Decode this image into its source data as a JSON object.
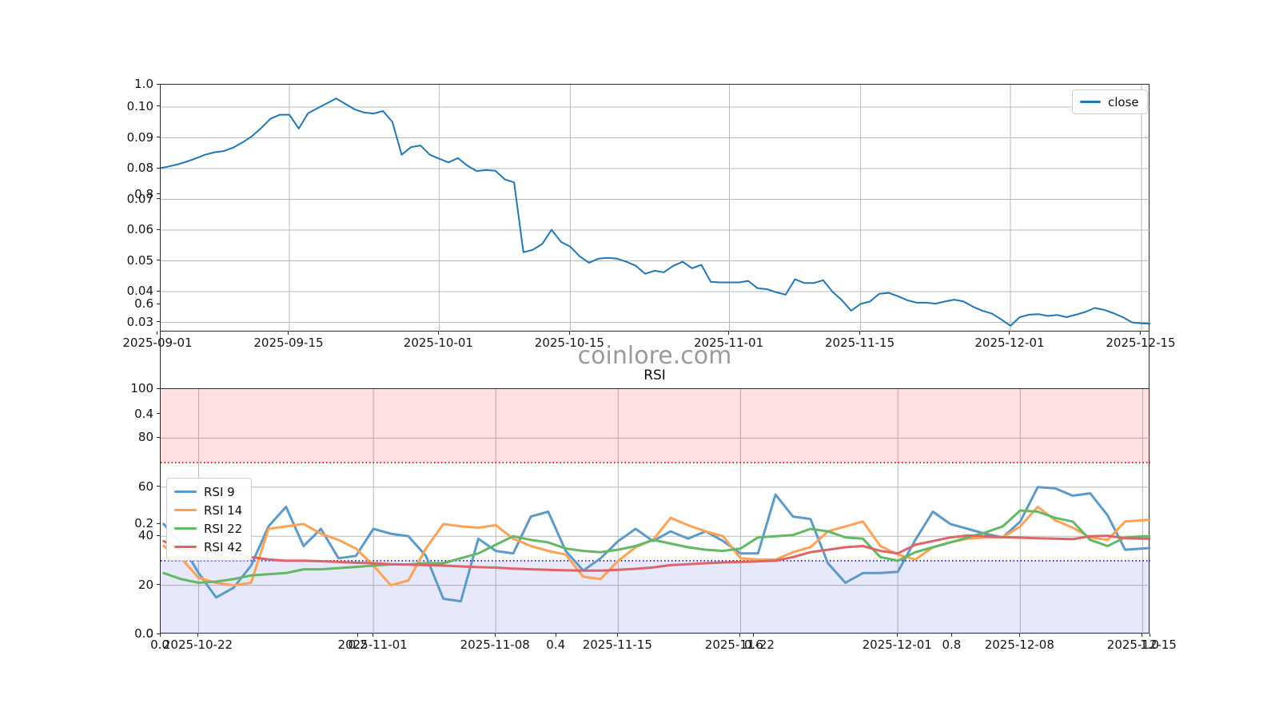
{
  "watermark": "coinlore.com",
  "rsi_title": "RSI",
  "colors": {
    "close_line": "#1f77b4",
    "rsi9": "#5b9ac9",
    "rsi14": "#ffa254",
    "rsi22": "#63b963",
    "rsi42": "#dd6467",
    "grid": "#b8b8b8",
    "spine": "#2a2a2a",
    "overbought_line": "#e60000",
    "oversold_line": "#1d1db8",
    "overbought_fill": "rgba(255,70,80,0.16)",
    "oversold_fill": "rgba(80,80,225,0.13)",
    "watermark_gray": "#9a9a9a"
  },
  "legend_price": {
    "items": [
      {
        "label": "close",
        "color": "#1f77b4"
      }
    ]
  },
  "legend_rsi": {
    "items": [
      {
        "label": "RSI 9",
        "color": "#5b9ac9"
      },
      {
        "label": "RSI 14",
        "color": "#ffa254"
      },
      {
        "label": "RSI 22",
        "color": "#63b963"
      },
      {
        "label": "RSI 42",
        "color": "#dd6467"
      }
    ]
  },
  "hidden_axis": {
    "y_tick_labels": [
      "1.0",
      "0.8",
      "0.6",
      "0.4",
      "0.2",
      "0.0"
    ],
    "x_tick_labels": [
      "0.0",
      "0.2",
      "0.4",
      "0.6",
      "0.8",
      "1.0"
    ]
  },
  "chart_data": [
    {
      "id": "price",
      "type": "line",
      "title": "",
      "xlabel": "",
      "ylabel": "",
      "x_start_date": "2025-09-01",
      "xlim": [
        0.26,
        105.94
      ],
      "ylim": [
        0.02677,
        0.10727
      ],
      "grid": true,
      "legend_position": "upper right",
      "x_ticks": [
        {
          "day": 0,
          "label": "2025-09-01"
        },
        {
          "day": 14,
          "label": "2025-09-15"
        },
        {
          "day": 30,
          "label": "2025-10-01"
        },
        {
          "day": 44,
          "label": "2025-10-15"
        },
        {
          "day": 61,
          "label": "2025-11-01"
        },
        {
          "day": 75,
          "label": "2025-11-15"
        },
        {
          "day": 91,
          "label": "2025-12-01"
        },
        {
          "day": 105,
          "label": "2025-12-15"
        }
      ],
      "y_ticks": [
        {
          "v": 0.1,
          "label": "0.10"
        },
        {
          "v": 0.09,
          "label": "0.09"
        },
        {
          "v": 0.08,
          "label": "0.08"
        },
        {
          "v": 0.07,
          "label": "0.07"
        },
        {
          "v": 0.06,
          "label": "0.06"
        },
        {
          "v": 0.05,
          "label": "0.05"
        },
        {
          "v": 0.04,
          "label": "0.04"
        },
        {
          "v": 0.03,
          "label": "0.03"
        }
      ],
      "series": [
        {
          "name": "close",
          "color": "#1f77b4",
          "width": 2,
          "values": [
            0.08,
            0.0806,
            0.0813,
            0.0822,
            0.0833,
            0.0845,
            0.0853,
            0.0857,
            0.0868,
            0.0885,
            0.0905,
            0.0932,
            0.0962,
            0.0975,
            0.0975,
            0.093,
            0.098,
            0.0996,
            0.1012,
            0.1028,
            0.101,
            0.0992,
            0.0982,
            0.0979,
            0.0987,
            0.0952,
            0.0845,
            0.087,
            0.0875,
            0.0845,
            0.0832,
            0.082,
            0.0834,
            0.081,
            0.0792,
            0.0795,
            0.0793,
            0.0765,
            0.0755,
            0.0528,
            0.0536,
            0.0555,
            0.0601,
            0.0562,
            0.0546,
            0.0515,
            0.0494,
            0.0507,
            0.051,
            0.0507,
            0.0497,
            0.0484,
            0.0458,
            0.0468,
            0.0463,
            0.0484,
            0.0497,
            0.0476,
            0.0487,
            0.0432,
            0.043,
            0.043,
            0.043,
            0.0435,
            0.0411,
            0.0408,
            0.0398,
            0.039,
            0.044,
            0.0428,
            0.0428,
            0.0437,
            0.04,
            0.0372,
            0.0338,
            0.036,
            0.0368,
            0.0393,
            0.0396,
            0.0385,
            0.0372,
            0.0364,
            0.0364,
            0.0361,
            0.0368,
            0.0374,
            0.0368,
            0.0351,
            0.0338,
            0.0329,
            0.031,
            0.0289,
            0.0317,
            0.0325,
            0.0327,
            0.0321,
            0.0324,
            0.0317,
            0.0325,
            0.0334,
            0.0347,
            0.0341,
            0.033,
            0.0317,
            0.03,
            0.0297,
            0.0296
          ]
        }
      ]
    },
    {
      "id": "rsi",
      "type": "line",
      "title": "RSI",
      "xlabel": "",
      "ylabel": "",
      "x_start_date": "2025-10-20",
      "xlim": [
        -0.17,
        56.44
      ],
      "ylim": [
        0,
        100
      ],
      "grid": true,
      "legend_position": "upper left",
      "bands": [
        {
          "from": 70,
          "to": 100,
          "fill": "rgba(255,70,80,0.16)",
          "meaning": "overbought"
        },
        {
          "from": 0,
          "to": 30,
          "fill": "rgba(80,80,225,0.13)",
          "meaning": "oversold"
        }
      ],
      "hlines": [
        {
          "v": 70,
          "color": "#e60000",
          "style": "dotted"
        },
        {
          "v": 30,
          "color": "#1d1db8",
          "style": "dotted"
        }
      ],
      "x_ticks": [
        {
          "day": 2,
          "label": "2025-10-22"
        },
        {
          "day": 12,
          "label": "2025-11-01"
        },
        {
          "day": 19,
          "label": "2025-11-08"
        },
        {
          "day": 26,
          "label": "2025-11-15"
        },
        {
          "day": 33,
          "label": "2025-11-22"
        },
        {
          "day": 42,
          "label": "2025-12-01"
        },
        {
          "day": 49,
          "label": "2025-12-08"
        },
        {
          "day": 56,
          "label": "2025-12-15"
        }
      ],
      "y_ticks": [
        {
          "v": 100,
          "label": "100"
        },
        {
          "v": 80,
          "label": "80"
        },
        {
          "v": 60,
          "label": "60"
        },
        {
          "v": 40,
          "label": "40"
        },
        {
          "v": 20,
          "label": "20"
        },
        {
          "v": 0,
          "label": "0"
        }
      ],
      "series": [
        {
          "name": "RSI 9",
          "color": "#5b9ac9",
          "width": 3,
          "values": [
            45,
            37,
            25,
            15,
            19,
            28,
            44,
            52,
            36,
            43,
            31,
            32,
            43,
            41,
            40,
            32,
            14.5,
            13.5,
            39,
            34,
            33,
            48,
            50,
            34,
            26,
            31,
            38,
            43,
            38,
            42,
            39,
            42,
            38,
            33,
            33,
            57,
            48,
            47,
            29,
            21,
            25,
            25,
            25.5,
            38.5,
            50,
            45,
            43,
            41,
            39.5,
            46,
            60,
            59.5,
            56.5,
            57.5,
            48.5,
            34.5,
            35,
            35.5
          ]
        },
        {
          "name": "RSI 14",
          "color": "#ffa254",
          "width": 3,
          "values": [
            36,
            31,
            23,
            21,
            20,
            21,
            43,
            44,
            45,
            41,
            38.5,
            35,
            28,
            20,
            22,
            35,
            45,
            44,
            43.5,
            44.5,
            39,
            36,
            34,
            32.5,
            23.5,
            22.5,
            30,
            35.5,
            38.5,
            47.5,
            44.5,
            42,
            40,
            31,
            30.5,
            30.5,
            33.5,
            35.5,
            42,
            44,
            46,
            36,
            32.5,
            30.5,
            35.5,
            37.5,
            39,
            39.5,
            39.5,
            44,
            52,
            46.5,
            43.5,
            39.5,
            38.5,
            46,
            46.5,
            47
          ]
        },
        {
          "name": "RSI 22",
          "color": "#63b963",
          "width": 3,
          "values": [
            25,
            22.5,
            21,
            21.5,
            22.5,
            24,
            24.5,
            25,
            26.5,
            26.5,
            27,
            27.5,
            28,
            28.5,
            28.5,
            29,
            29,
            31,
            33,
            36.5,
            40,
            38.5,
            37.5,
            35,
            34,
            33.5,
            34.5,
            36,
            38.5,
            37,
            35.5,
            34.5,
            34,
            35,
            39.5,
            40,
            40.5,
            43,
            42,
            39.5,
            39,
            31.5,
            30,
            33.5,
            35.5,
            37.5,
            39.5,
            41.5,
            44,
            50.5,
            50,
            47.5,
            46,
            38.5,
            36,
            39.5,
            40,
            40
          ]
        },
        {
          "name": "RSI 42",
          "color": "#dd6467",
          "width": 3,
          "values": [
            38,
            34.5,
            34,
            33.5,
            33.5,
            31.5,
            30.5,
            30,
            30,
            29.8,
            29.5,
            29.2,
            29,
            28.6,
            28.4,
            28.2,
            28,
            27.7,
            27.4,
            27.2,
            26.8,
            26.5,
            26.3,
            26.1,
            26,
            26,
            26.3,
            26.7,
            27.3,
            28.2,
            28.6,
            29,
            29.3,
            29.5,
            29.7,
            30,
            31.5,
            33.5,
            34.5,
            35.5,
            36,
            34,
            33,
            36.5,
            38,
            39.5,
            40.3,
            40,
            39.6,
            39.4,
            39.2,
            39,
            38.8,
            40,
            40.2,
            39.2,
            39,
            39
          ]
        }
      ]
    }
  ]
}
